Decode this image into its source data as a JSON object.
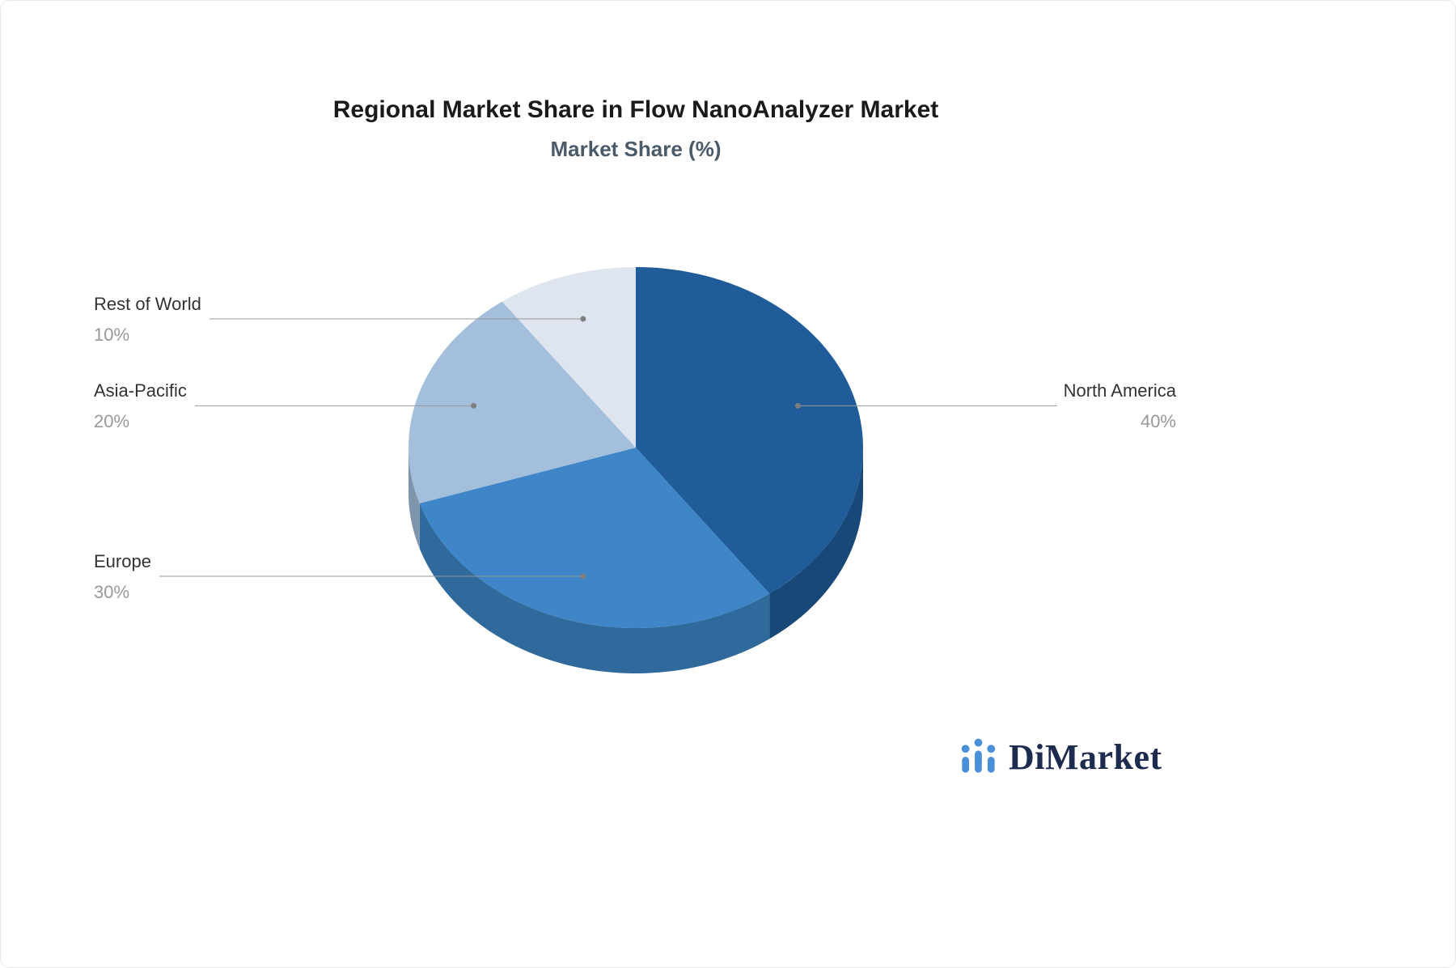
{
  "page": {
    "title": "Regional Market Share in Flow NanoAnalyzer Market",
    "subtitle": "Market Share (%)"
  },
  "brand": {
    "name": "DiMarket",
    "icon": "dimarket-bars-icon",
    "text_color": "#1d2b4f",
    "icon_color": "#4a90d9"
  },
  "chart_data": {
    "type": "pie",
    "title": "Regional Market Share in Flow NanoAnalyzer Market",
    "subtitle": "Market Share (%)",
    "unit": "%",
    "labels": [
      "North America",
      "Europe",
      "Asia-Pacific",
      "Rest of World"
    ],
    "values": [
      40,
      30,
      20,
      10
    ],
    "colors": [
      "#1f5c99",
      "#3e86c7",
      "#a3bfdc",
      "#dfe5ef"
    ],
    "effect": "3d",
    "start_angle": 0,
    "direction": "clockwise",
    "legend_position": "none",
    "label_style": "callout-lines",
    "label_name_color": "#333333",
    "label_value_color": "#999999",
    "line_color": "#999999",
    "dot_color": "#7f7f7f"
  }
}
